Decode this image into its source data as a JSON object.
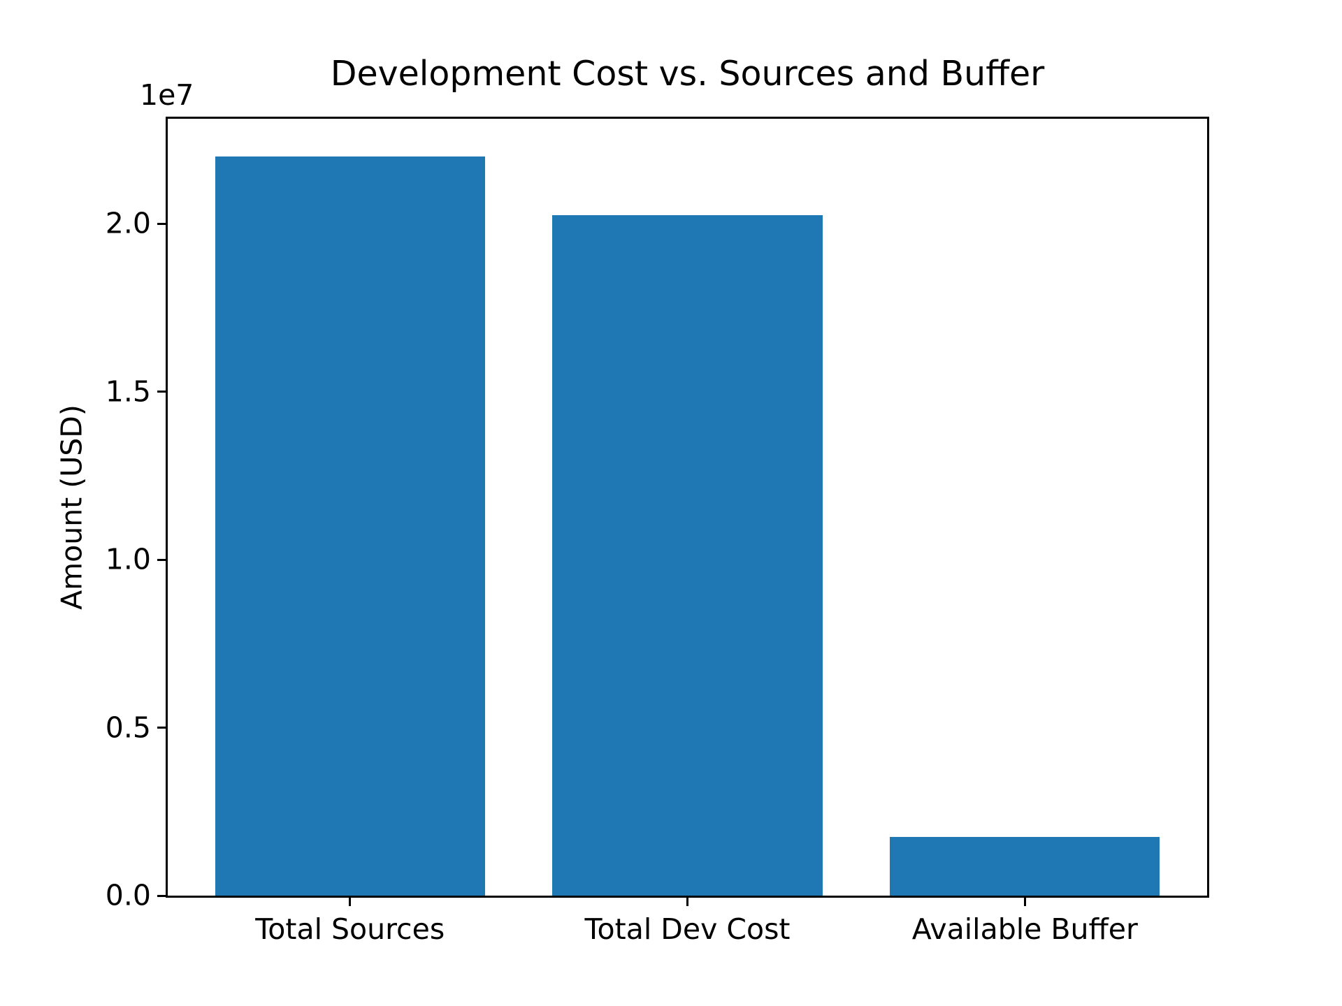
{
  "chart_data": {
    "type": "bar",
    "title": "Development Cost vs. Sources and Buffer",
    "xlabel": "",
    "ylabel": "Amount (USD)",
    "offset_label": "1e7",
    "categories": [
      "Total Sources",
      "Total Dev Cost",
      "Available Buffer"
    ],
    "values": [
      22000000,
      20250000,
      1750000
    ],
    "bar_color": "#1f77b4",
    "text_color": "#000000",
    "ylim": [
      0,
      23125000
    ],
    "yticks": [
      {
        "label": "0.0",
        "value": 0
      },
      {
        "label": "0.5",
        "value": 5000000
      },
      {
        "label": "1.0",
        "value": 10000000
      },
      {
        "label": "1.5",
        "value": 15000000
      },
      {
        "label": "2.0",
        "value": 20000000
      }
    ],
    "grid": false,
    "legend": null
  }
}
